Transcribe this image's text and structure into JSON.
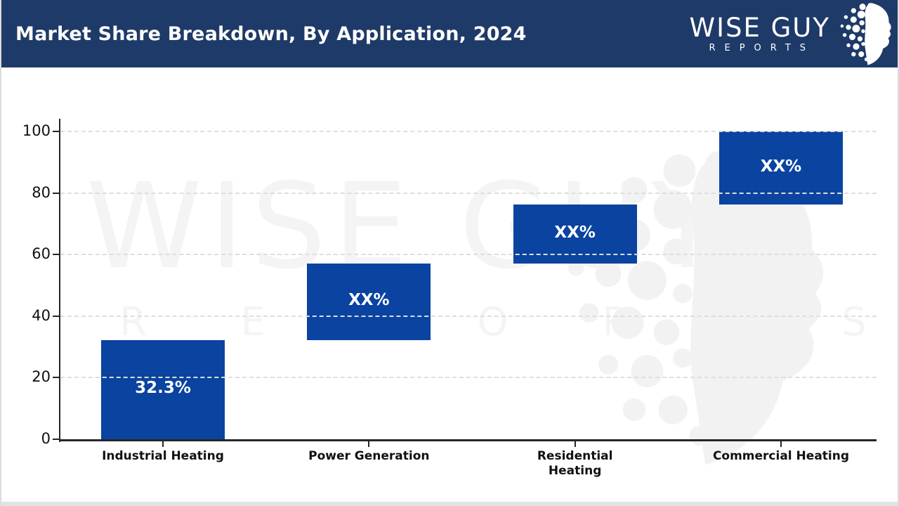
{
  "header": {
    "title": "Market Share Breakdown, By Application, 2024",
    "logo_line1": "WISE GUY",
    "logo_line2": "REPORTS",
    "background_color": "#1e3a68"
  },
  "watermark": {
    "line1": "WISE GUY",
    "line2": "R E P O R T S"
  },
  "chart_data": {
    "type": "bar",
    "subtype": "waterfall",
    "title": "Market Share Breakdown, By Application, 2024",
    "categories": [
      "Industrial Heating",
      "Power Generation",
      "Residential\nHeating",
      "Commercial Heating"
    ],
    "segments": [
      {
        "category": "Industrial Heating",
        "start": 0,
        "end": 32.3,
        "value_label": "32.3%"
      },
      {
        "category": "Power Generation",
        "start": 32.3,
        "end": 57.0,
        "value_label": "XX%"
      },
      {
        "category": "Residential Heating",
        "start": 57.0,
        "end": 76.3,
        "value_label": "XX%"
      },
      {
        "category": "Commercial Heating",
        "start": 76.3,
        "end": 100.0,
        "value_label": "XX%"
      }
    ],
    "ylim": [
      0,
      100
    ],
    "yticks": [
      0,
      20,
      40,
      60,
      80,
      100
    ],
    "grid": {
      "axis": "y",
      "style": "dashed",
      "color": "#dedede"
    },
    "bar_color": "#0a43a0",
    "bar_label_color": "#ffffff",
    "axis_color": "#262626",
    "tick_label_color": "#111111",
    "legend": "none"
  }
}
